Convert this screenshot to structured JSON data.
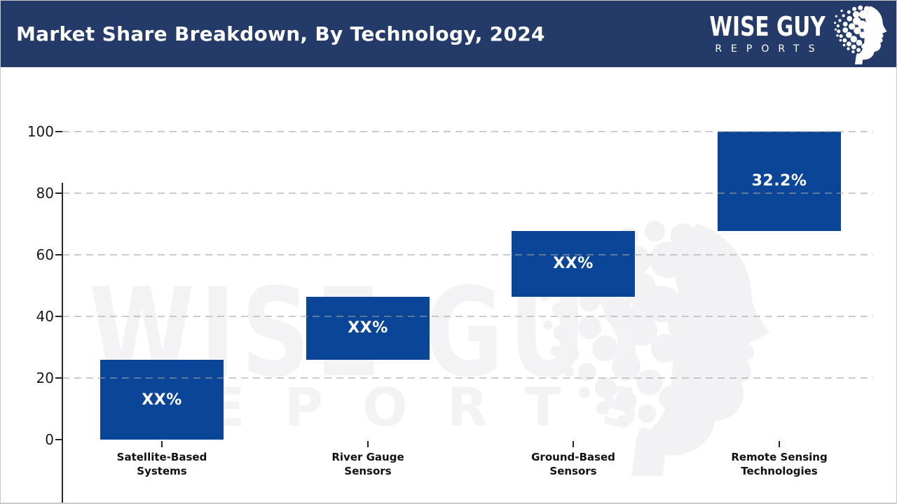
{
  "header": {
    "title": "Market Share Breakdown, By Technology, 2024",
    "logo": {
      "line1": "WISE GUY",
      "line2": "REPORTS"
    }
  },
  "watermark": {
    "line1": "WISE GUY",
    "line2": "REPORTS"
  },
  "colors": {
    "header_bg": "#243a69",
    "bar": "#0a4597",
    "bar_label": "#ffffff",
    "axis": "#262626",
    "grid": "#c9c9c9",
    "watermark": "#f3f3f5"
  },
  "chart_data": {
    "type": "bar",
    "subtype": "waterfall",
    "title": "Market Share Breakdown, By Technology, 2024",
    "categories": [
      "Satellite-Based\nSystems",
      "River Gauge\nSensors",
      "Ground-Based\nSensors",
      "Remote Sensing\nTechnologies"
    ],
    "segments": [
      {
        "category": "Satellite-Based Systems",
        "start": 0,
        "end": 25.9,
        "label": "XX%"
      },
      {
        "category": "River Gauge Sensors",
        "start": 25.9,
        "end": 46.4,
        "label": "XX%"
      },
      {
        "category": "Ground-Based Sensors",
        "start": 46.4,
        "end": 67.8,
        "label": "XX%"
      },
      {
        "category": "Remote Sensing Technologies",
        "start": 67.8,
        "end": 100,
        "label": "32.2%",
        "value": 32.2
      }
    ],
    "ylim": [
      0,
      100
    ],
    "yticks": [
      0,
      20,
      40,
      60,
      80,
      100
    ],
    "xlabel": "",
    "ylabel": "",
    "grid": "dashed-horizontal",
    "legend": false
  }
}
